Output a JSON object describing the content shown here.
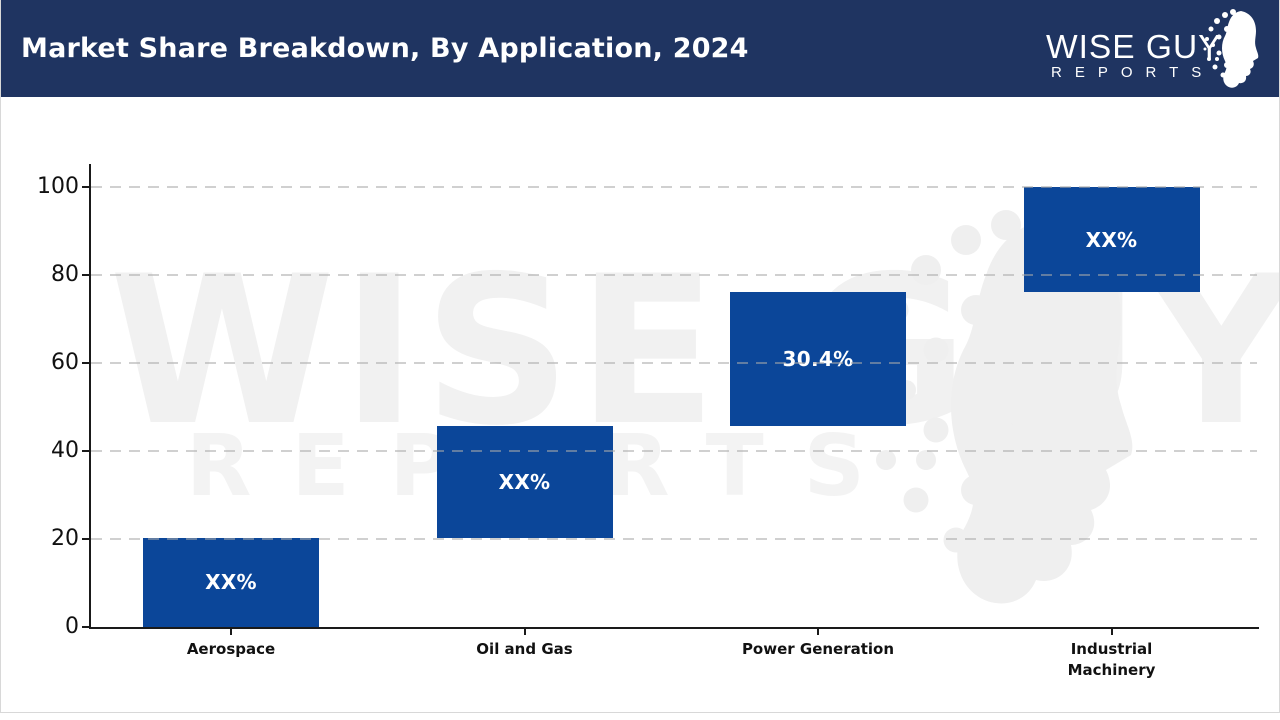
{
  "header": {
    "title": "Market Share Breakdown, By Application, 2024",
    "logo": {
      "brand": "WISE GUY",
      "sub": "REPORTS"
    }
  },
  "watermark": {
    "brand": "WISE GUY",
    "sub": "REPORTS"
  },
  "chart_data": {
    "type": "bar",
    "subtype": "floating-range-waterfall",
    "title": "Market Share Breakdown, By Application, 2024",
    "xlabel": "",
    "ylabel": "",
    "categories": [
      "Aerospace",
      "Oil and Gas",
      "Power Generation",
      "Industrial Machinery"
    ],
    "bars": [
      {
        "category": "Aerospace",
        "lines": [
          "Aerospace"
        ],
        "start": 0,
        "end": 20.3,
        "label": "XX%"
      },
      {
        "category": "Oil and Gas",
        "lines": [
          "Oil and Gas"
        ],
        "start": 20.3,
        "end": 45.7,
        "label": "XX%"
      },
      {
        "category": "Power Generation",
        "lines": [
          "Power Generation"
        ],
        "start": 45.7,
        "end": 76.1,
        "label": "30.4%"
      },
      {
        "category": "Industrial Machinery",
        "lines": [
          "Industrial",
          "Machinery"
        ],
        "start": 76.1,
        "end": 100,
        "label": "XX%"
      }
    ],
    "yticks": [
      0,
      20,
      40,
      60,
      80,
      100
    ],
    "ylim": [
      0,
      105
    ],
    "grid": "horizontal-dashed",
    "legend": "none"
  },
  "colors": {
    "header_bg": "#1f3461",
    "bar": "#0b4699",
    "bar_label": "#ffffff",
    "grid": "#d9d9d9",
    "axis": "#1a1a1a",
    "watermark": "#f1f1f1"
  }
}
